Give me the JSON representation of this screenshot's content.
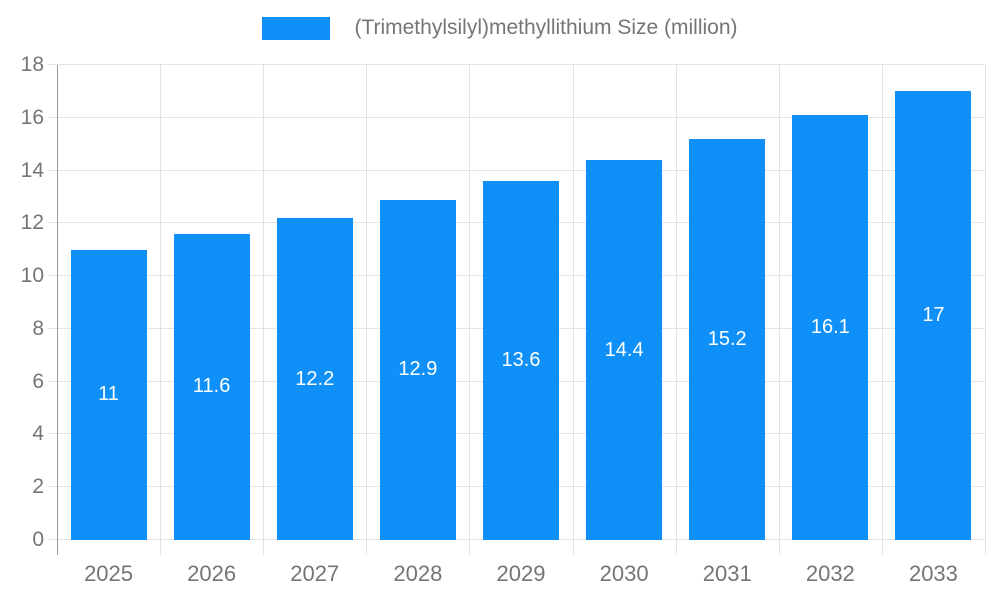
{
  "legend": {
    "label": "(Trimethylsilyl)methyllithium Size (million)"
  },
  "colors": {
    "bar": "#0E90F8",
    "grid": "#e3e3e3",
    "axis": "#989898",
    "tick_text": "#757575",
    "bar_label_text": "#ffffff"
  },
  "chart_data": {
    "type": "bar",
    "title": "",
    "xlabel": "",
    "ylabel": "",
    "categories": [
      "2025",
      "2026",
      "2027",
      "2028",
      "2029",
      "2030",
      "2031",
      "2032",
      "2033"
    ],
    "values": [
      11,
      11.6,
      12.2,
      12.9,
      13.6,
      14.4,
      15.2,
      16.1,
      17
    ],
    "series_name": "(Trimethylsilyl)methyllithium Size (million)",
    "bar_labels": [
      "11",
      "11.6",
      "12.2",
      "12.9",
      "13.6",
      "14.4",
      "15.2",
      "16.1",
      "17"
    ],
    "ylim": [
      0,
      18
    ],
    "ytick_step": 2,
    "ytick_labels": [
      "0",
      "2",
      "4",
      "6",
      "8",
      "10",
      "12",
      "14",
      "16",
      "18"
    ],
    "grid": true,
    "legend_position": "top-center",
    "bar_color": "#0E90F8",
    "bar_label_position": "center-of-bar"
  }
}
